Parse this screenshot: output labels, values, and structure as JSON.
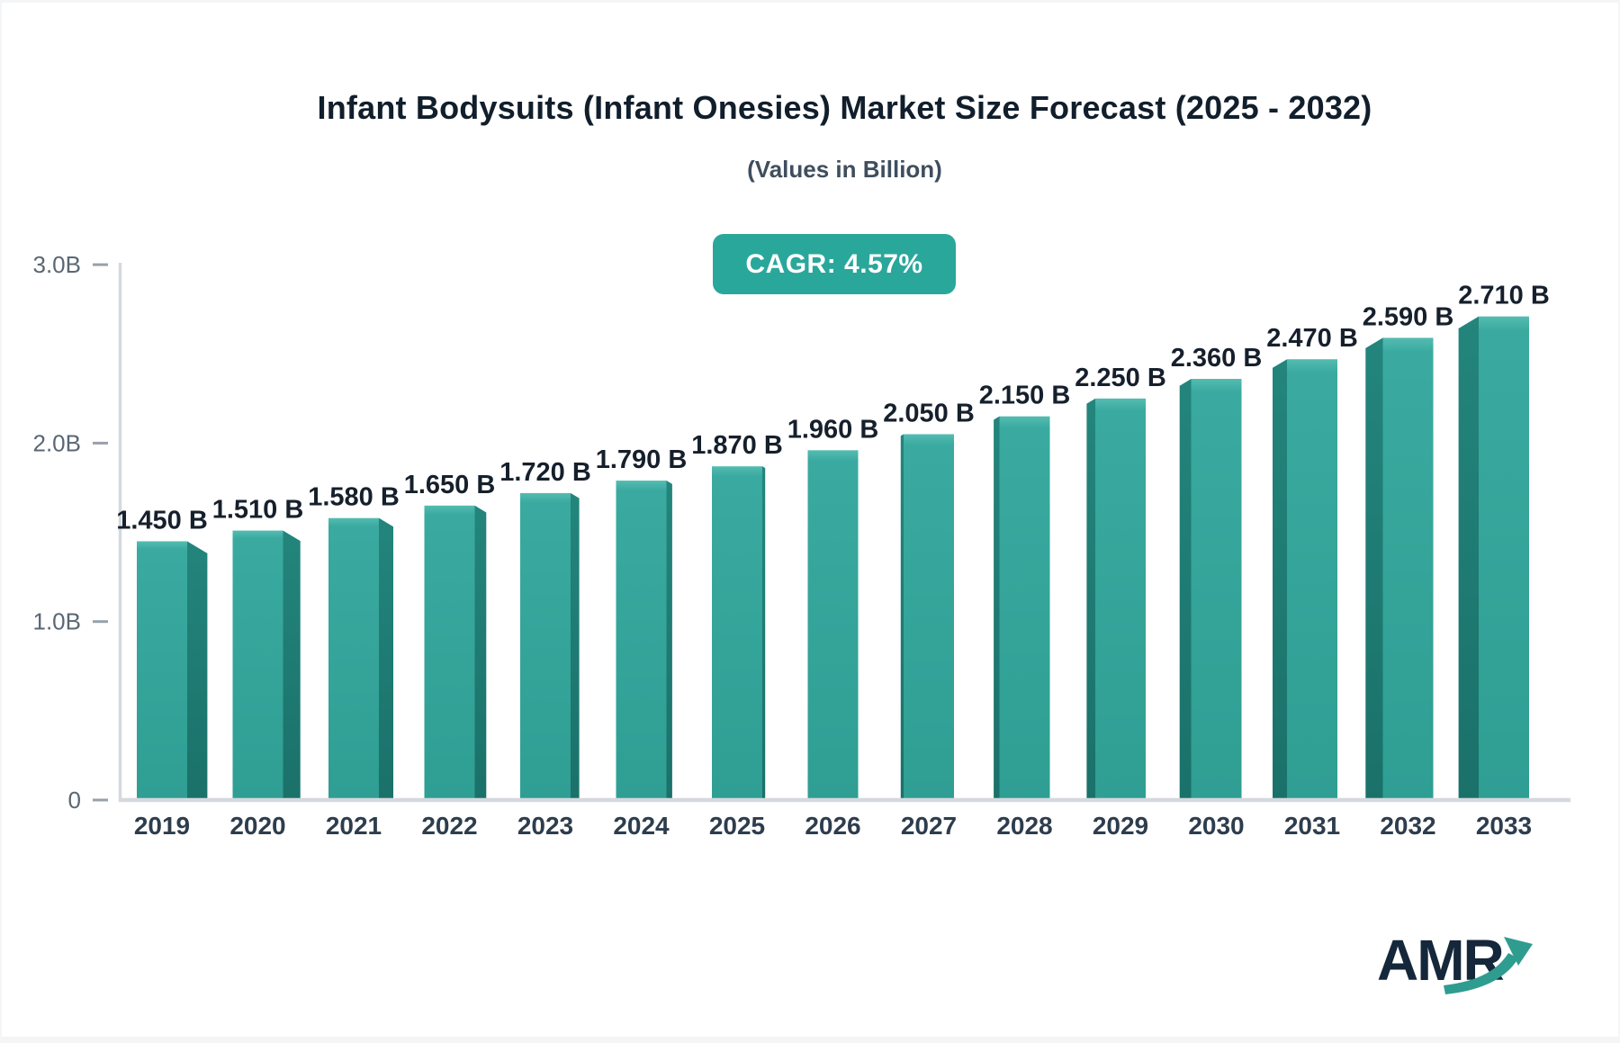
{
  "page": {
    "background": "#f3f5f7",
    "card_background": "#ffffff"
  },
  "header": {
    "title": "Infant Bodysuits (Infant Onesies) Market Size Forecast (2025 - 2032)",
    "subtitle": "(Values in Billion)",
    "cagr_label": "CAGR: 4.57%",
    "badge_color": "#2aa79b"
  },
  "chart_data": {
    "type": "bar",
    "title": "Infant Bodysuits (Infant Onesies) Market Size Forecast (2025 - 2032)",
    "subtitle": "(Values in Billion)",
    "cagr": "4.57%",
    "categories": [
      "2019",
      "2020",
      "2021",
      "2022",
      "2023",
      "2024",
      "2025",
      "2026",
      "2027",
      "2028",
      "2029",
      "2030",
      "2031",
      "2032",
      "2033"
    ],
    "values": [
      1.45,
      1.51,
      1.58,
      1.65,
      1.72,
      1.79,
      1.87,
      1.96,
      2.05,
      2.15,
      2.25,
      2.36,
      2.47,
      2.59,
      2.71
    ],
    "value_labels": [
      "1.450 B",
      "1.510 B",
      "1.580 B",
      "1.650 B",
      "1.720 B",
      "1.790 B",
      "1.870 B",
      "1.960 B",
      "2.050 B",
      "2.150 B",
      "2.250 B",
      "2.360 B",
      "2.470 B",
      "2.590 B",
      "2.710 B"
    ],
    "yticks": [
      {
        "label": "0",
        "value": 0
      },
      {
        "label": "1.0B",
        "value": 1
      },
      {
        "label": "2.0B",
        "value": 2
      },
      {
        "label": "3.0B",
        "value": 3
      }
    ],
    "ylim": [
      0,
      3.0
    ],
    "xlabel": "",
    "ylabel": "",
    "grid": false,
    "legend": false,
    "colors": {
      "bar_front_top": "#55bcb1",
      "bar_front": "#3aaaa0",
      "bar_front_bottom": "#2f9e93",
      "bar_side": "#23857c",
      "bar_side_dark": "#1a716a",
      "axis": "#d5d9de",
      "tick_dash": "#97a1ab",
      "value_label": "#16202c",
      "year_label": "#2d3d4d",
      "ytick_label": "#5a6774"
    }
  },
  "logo": {
    "text": "AMR",
    "text_color": "#15273a",
    "arrow_color": "#2f9c90"
  }
}
